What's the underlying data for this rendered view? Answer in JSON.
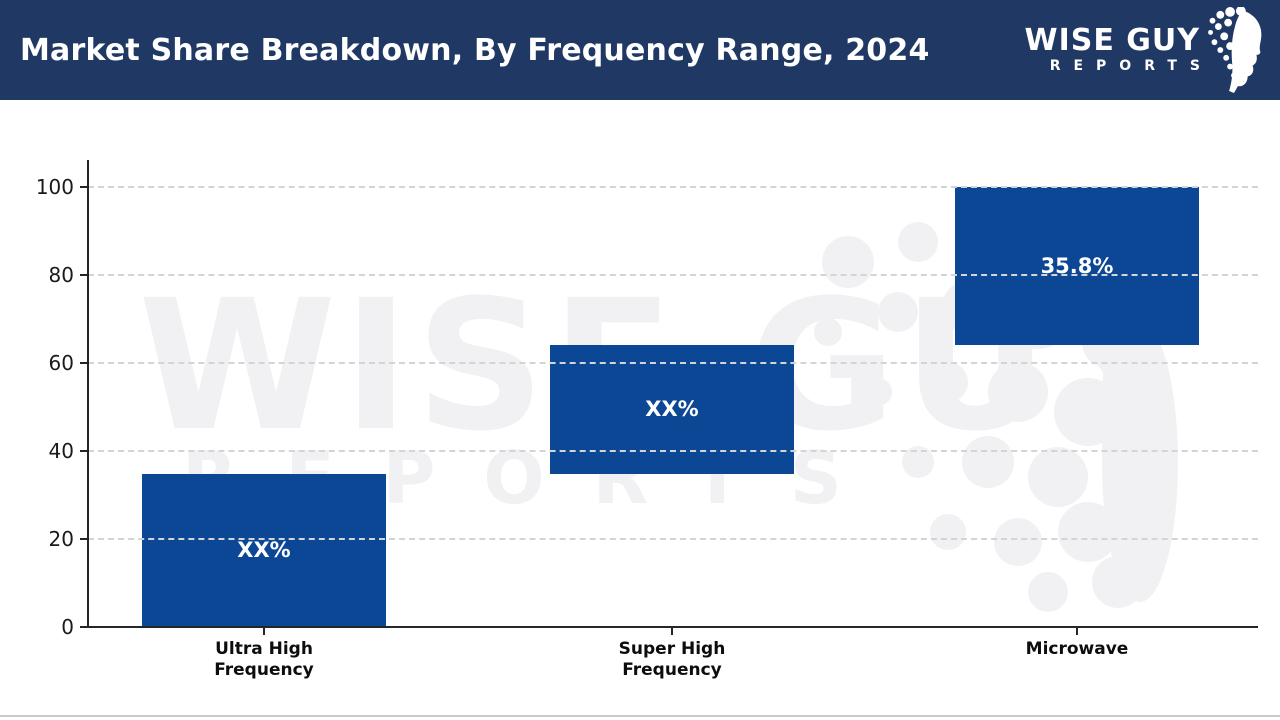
{
  "header": {
    "title": "Market Share Breakdown, By Frequency Range, 2024",
    "logo": {
      "wordmark": "WISE GUY",
      "subtext": "REPORTS"
    }
  },
  "watermark": {
    "wordmark": "WISE GUY",
    "subtext": "REPORTS"
  },
  "chart_data": {
    "type": "bar",
    "subtype": "waterfall-segmented",
    "title": "Market Share Breakdown, By Frequency Range, 2024",
    "categories": [
      "Ultra High Frequency",
      "Super High Frequency",
      "Microwave"
    ],
    "category_label_lines": [
      [
        "Ultra High",
        "Frequency"
      ],
      [
        "Super High",
        "Frequency"
      ],
      [
        "Microwave"
      ]
    ],
    "segments": [
      {
        "category": "Ultra High Frequency",
        "start": 0,
        "end": 34.8,
        "value_label": "XX%"
      },
      {
        "category": "Super High Frequency",
        "start": 34.8,
        "end": 64.2,
        "value_label": "XX%"
      },
      {
        "category": "Microwave",
        "start": 64.2,
        "end": 100,
        "value_label": "35.8%"
      }
    ],
    "y_ticks": [
      0,
      20,
      40,
      60,
      80,
      100
    ],
    "ylim": [
      0,
      106
    ],
    "xlabel": "",
    "ylabel": "",
    "grid": "horizontal-dashed",
    "legend": "none",
    "bar_color": "#0b4795"
  },
  "colors": {
    "header_bg": "#203864",
    "bar": "#0b4795",
    "grid": "#d4d4d4",
    "axis": "#262626",
    "watermark": "#f1f1f4",
    "bar_label_text": "#ffffff",
    "footer_line": "#c9c9c9"
  }
}
